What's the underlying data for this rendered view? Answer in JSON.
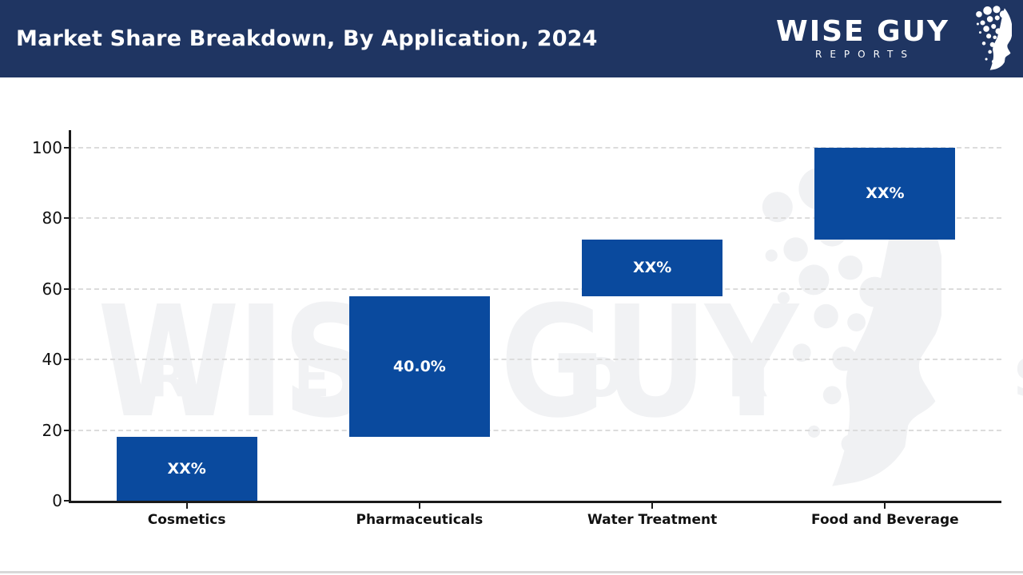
{
  "header": {
    "title": "Market Share Breakdown, By Application, 2024",
    "logo_line1": "WISE GUY",
    "logo_line2": "REPORTS"
  },
  "watermark": {
    "line1": "WISE GUY",
    "line2": "R E P O R T S"
  },
  "colors": {
    "header_bg": "#1f3562",
    "bar_blue": "#0a4a9e",
    "grid_gray": "#dcdcdc",
    "watermark_gray": "#f1f2f4"
  },
  "chart_data": {
    "type": "bar",
    "subtype": "floating-waterfall",
    "title": "Market Share Breakdown, By Application, 2024",
    "categories": [
      "Cosmetics",
      "Pharmaceuticals",
      "Water Treatment",
      "Food and Beverage"
    ],
    "segments": [
      {
        "category": "Cosmetics",
        "start": 0,
        "end": 18,
        "value_label": "XX%"
      },
      {
        "category": "Pharmaceuticals",
        "start": 18,
        "end": 58,
        "value_label": "40.0%"
      },
      {
        "category": "Water Treatment",
        "start": 58,
        "end": 74,
        "value_label": "XX%"
      },
      {
        "category": "Food and Beverage",
        "start": 74,
        "end": 100,
        "value_label": "XX%"
      }
    ],
    "yticks": [
      0,
      20,
      40,
      60,
      80,
      100
    ],
    "ylim": [
      0,
      105
    ],
    "xlabel": "",
    "ylabel": "",
    "grid": "horizontal-dashed",
    "legend": "none"
  }
}
